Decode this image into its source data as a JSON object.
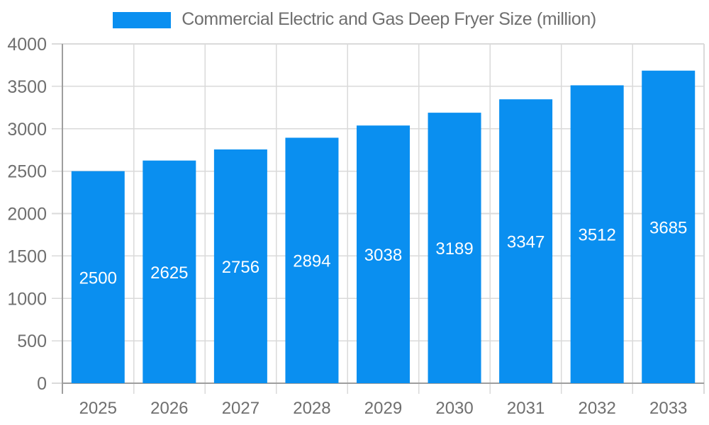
{
  "legend": {
    "label": "Commercial Electric and Gas Deep Fryer Size (million)"
  },
  "chart_data": {
    "type": "bar",
    "title": "Commercial Electric and Gas Deep Fryer Size (million)",
    "categories": [
      "2025",
      "2026",
      "2027",
      "2028",
      "2029",
      "2030",
      "2031",
      "2032",
      "2033"
    ],
    "values": [
      2500,
      2625,
      2756,
      2894,
      3038,
      3189,
      3347,
      3512,
      3685
    ],
    "bar_value_labels": [
      "2500",
      "2625",
      "2756",
      "2894",
      "3038",
      "3189",
      "3347",
      "3512",
      "3685"
    ],
    "xlabel": "",
    "ylabel": "",
    "ylim": [
      0,
      4000
    ],
    "ytick_interval": 500,
    "ytick_labels": [
      "0",
      "500",
      "1000",
      "1500",
      "2000",
      "2500",
      "3000",
      "3500",
      "4000"
    ],
    "grid": true,
    "legend_position": "top-center",
    "bar_labels_position": "inside-middle",
    "colors": {
      "bar": "#0a8ff0",
      "axis": "#9e9e9e",
      "grid": "#dadada",
      "tick_label_text": "#6f6f6f",
      "bar_label_text": "#ffffff",
      "background": "#ffffff"
    }
  }
}
